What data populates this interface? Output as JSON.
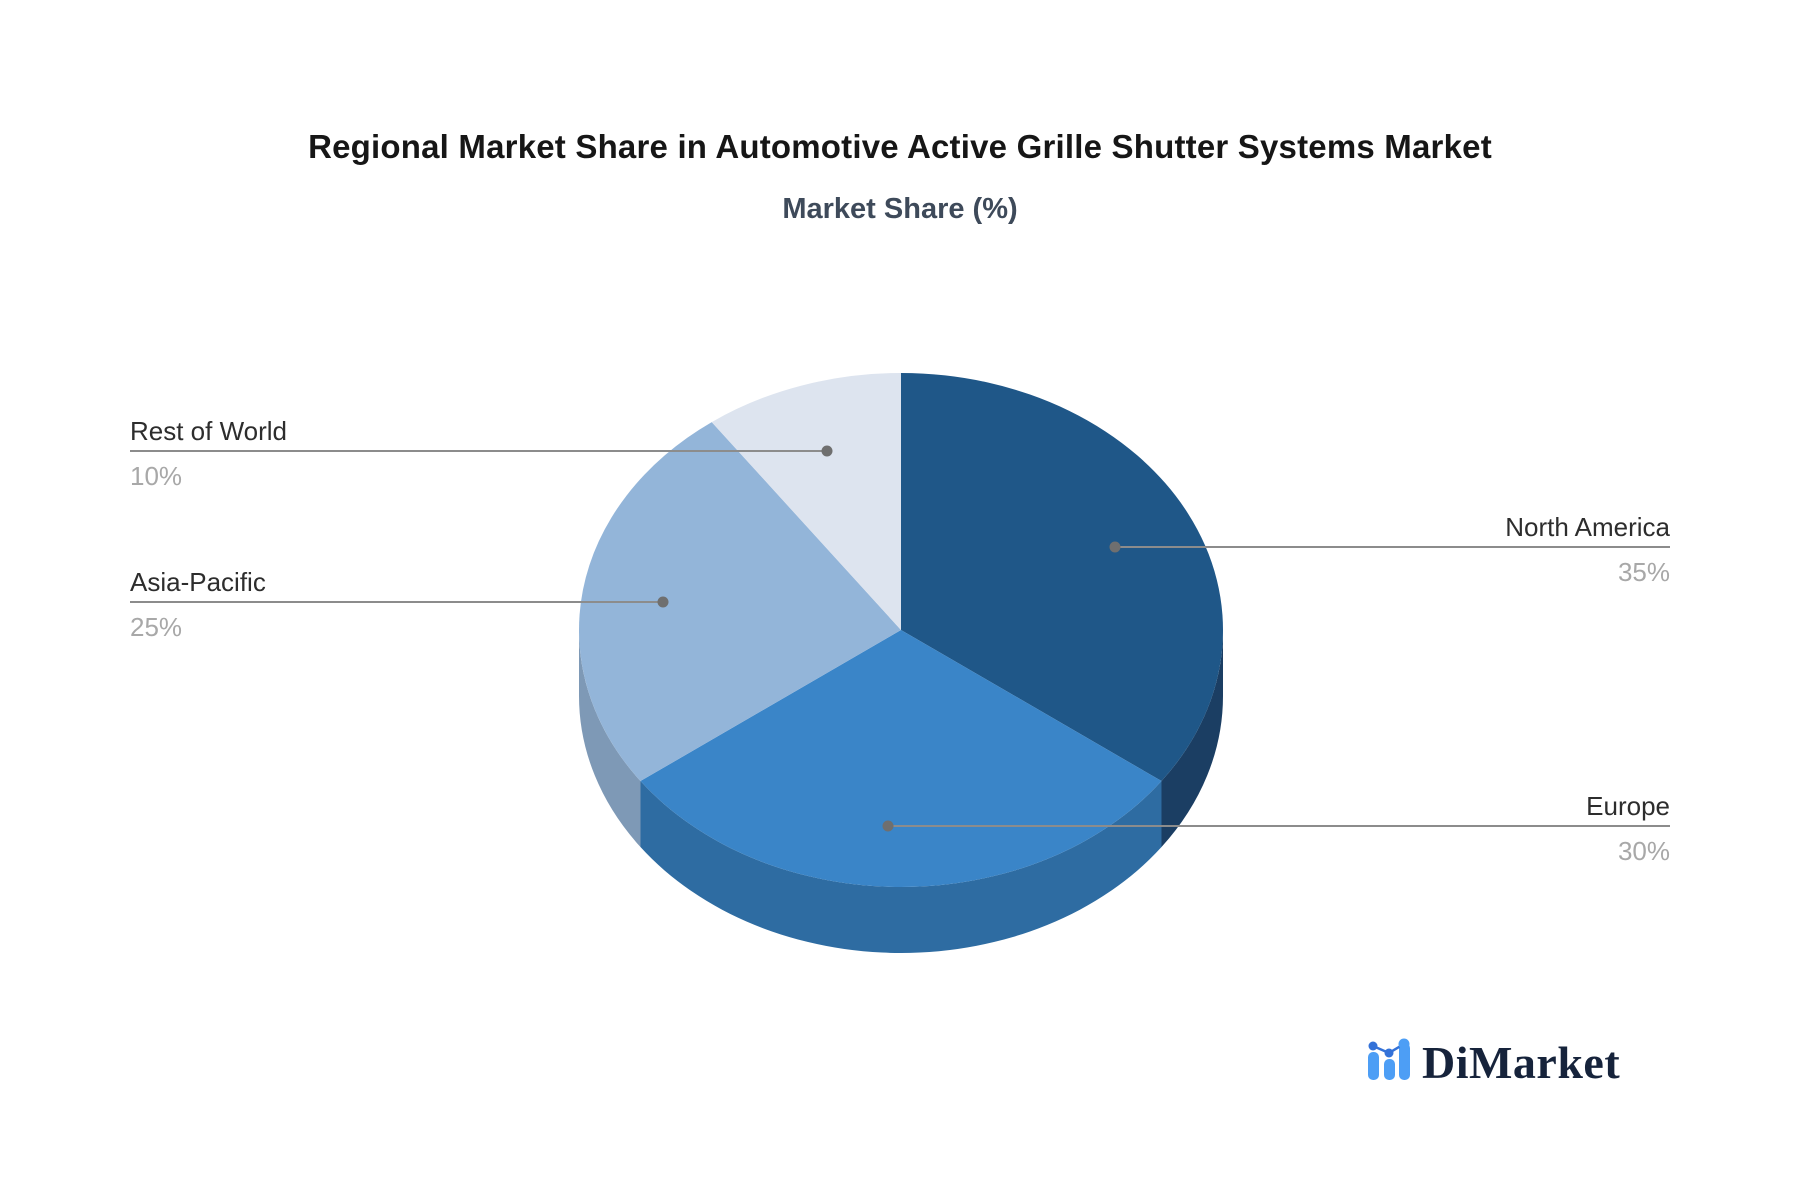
{
  "chart_data": {
    "type": "pie",
    "style": "3d",
    "title": "Regional Market Share in Automotive Active Grille Shutter Systems Market",
    "subtitle": "Market Share (%)",
    "categories": [
      "North America",
      "Europe",
      "Asia-Pacific",
      "Rest of World"
    ],
    "values": [
      35,
      30,
      25,
      10
    ],
    "value_labels": [
      "35%",
      "30%",
      "25%",
      "10%"
    ],
    "colors": [
      "#1F5788",
      "#3A85C8",
      "#93B5D9",
      "#DDE4EF"
    ],
    "side_colors": [
      "#1B3E63",
      "#2E6CA2",
      "#7E99B6",
      "#C9D3E2"
    ],
    "start_angle_deg": 0,
    "direction": "clockwise",
    "legend_position": "callout-labels",
    "leader_line_color": "#8C8C8C",
    "label_name_color": "#2d2d2d",
    "label_value_color": "#a8a8a8"
  },
  "watermark": {
    "text": "DiMarket",
    "icon": "bar-chart-logo-icon",
    "text_color": "#16233B",
    "bar_color": "#4D9EF5",
    "accent_color": "#3472D8"
  }
}
